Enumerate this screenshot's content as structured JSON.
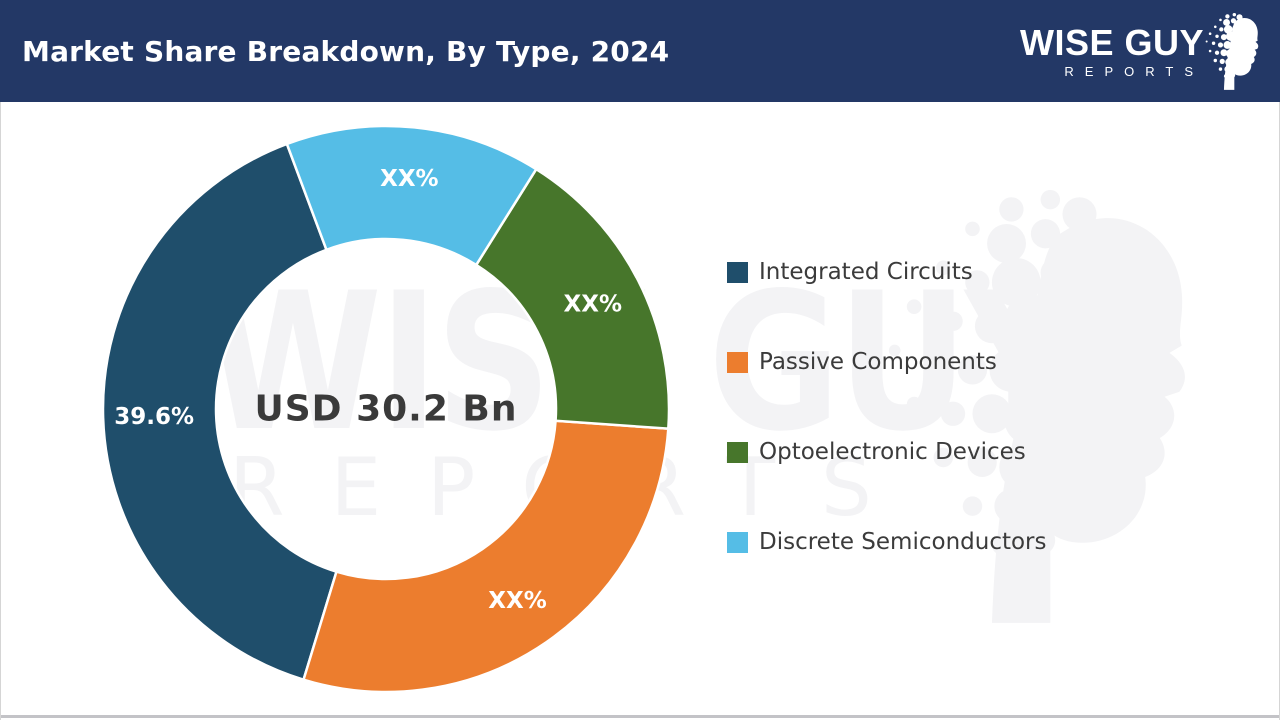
{
  "header": {
    "title": "Market Share Breakdown, By Type, 2024",
    "logo": {
      "line1": "WISE GUY",
      "line2": "REPORTS"
    }
  },
  "watermark": {
    "line1": "WISE GUY",
    "line2": "REPORTS"
  },
  "chart_data": {
    "type": "donut",
    "title": "Market Share Breakdown, By Type, 2024",
    "center_label": "USD 30.2 Bn",
    "start_angle_deg": 110.5,
    "direction": "counterclockwise",
    "inner_radius_ratio": 0.6,
    "legend_position": "right",
    "segments": [
      {
        "name": "Integrated Circuits",
        "value_label": "39.6%",
        "arc_pct": 39.6,
        "color": "#1F4E6B"
      },
      {
        "name": "Passive Components",
        "value_label": "XX%",
        "arc_pct": 28.6,
        "color": "#EC7D2E"
      },
      {
        "name": "Optoelectronic Devices",
        "value_label": "XX%",
        "arc_pct": 17.2,
        "color": "#47762B"
      },
      {
        "name": "Discrete Semiconductors",
        "value_label": "XX%",
        "arc_pct": 14.6,
        "color": "#55BDE6"
      }
    ]
  },
  "colors": {
    "header_bg": "#233866",
    "content_bg": "#FFFFFF",
    "watermark": "#F3F3F5",
    "center_text": "#3A3A3A",
    "border": "#C3C3C7"
  }
}
